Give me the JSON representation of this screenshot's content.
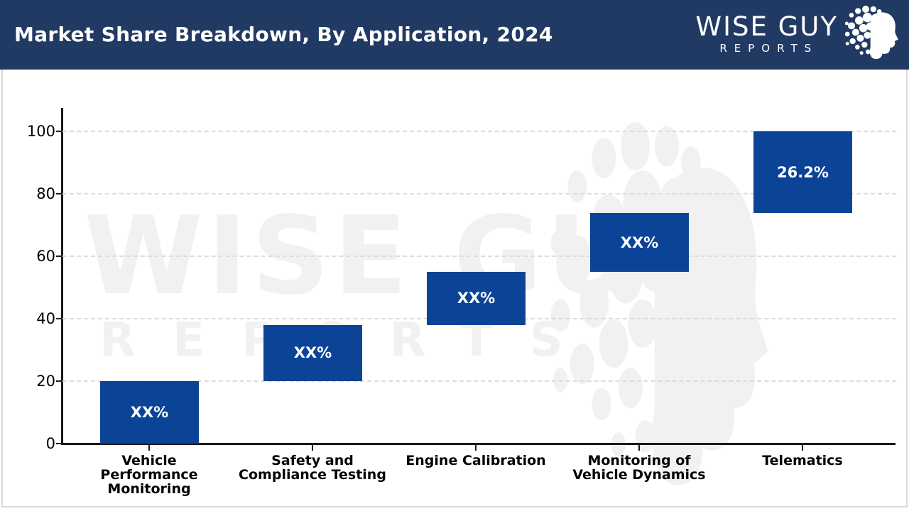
{
  "header": {
    "title": "Market Share Breakdown, By Application, 2024",
    "logo": {
      "line1": "WISE GUY",
      "line2": "REPORTS"
    }
  },
  "watermark": {
    "line1": "WISE GUY",
    "line2": "REPORTS"
  },
  "chart_data": {
    "type": "bar",
    "variant": "waterfall",
    "title": "Market Share Breakdown, By Application, 2024",
    "categories": [
      "Vehicle Performance Monitoring",
      "Safety and Compliance Testing",
      "Engine Calibration",
      "Monitoring of Vehicle Dynamics",
      "Telematics"
    ],
    "category_label_lines": [
      [
        "Vehicle",
        "Performance",
        "Monitoring"
      ],
      [
        "Safety and",
        "Compliance Testing"
      ],
      [
        "Engine Calibration"
      ],
      [
        "Monitoring of",
        "Vehicle Dynamics"
      ],
      [
        "Telematics"
      ]
    ],
    "segments": [
      {
        "start": 0,
        "end": 20,
        "value": 20,
        "label": "XX%"
      },
      {
        "start": 20,
        "end": 38,
        "value": 18,
        "label": "XX%"
      },
      {
        "start": 38,
        "end": 55,
        "value": 17,
        "label": "XX%"
      },
      {
        "start": 55,
        "end": 73.8,
        "value": 18.8,
        "label": "XX%"
      },
      {
        "start": 73.8,
        "end": 100,
        "value": 26.2,
        "label": "26.2%"
      }
    ],
    "ylim": [
      0,
      100
    ],
    "yticks": [
      0,
      20,
      40,
      60,
      80,
      100
    ],
    "grid": "dashed-horizontal",
    "legend": "none",
    "bar_color": "#0b4496",
    "axis_color": "#1a1a1a",
    "grid_color": "#dcdcdc",
    "header_color": "#213a64"
  }
}
